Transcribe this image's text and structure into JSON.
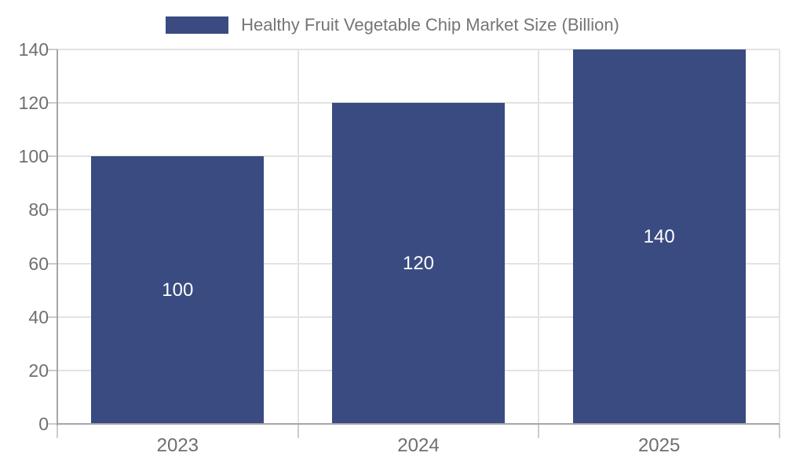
{
  "legend": {
    "label": "Healthy Fruit Vegetable Chip Market Size (Billion)"
  },
  "colors": {
    "bar": "#3a4b82",
    "grid": "#e3e3e3",
    "axis": "#a6a6a6",
    "tick": "#cccccc",
    "y_tick_label": "#6f6f6f",
    "x_tick_label": "#6f6f6f",
    "legend_text": "#757575",
    "data_label": "#ffffff",
    "background": "#ffffff"
  },
  "chart_data": {
    "type": "bar",
    "categories": [
      "2023",
      "2024",
      "2025"
    ],
    "series": [
      {
        "name": "Healthy Fruit Vegetable Chip Market Size (Billion)",
        "values": [
          100,
          120,
          140
        ]
      }
    ],
    "title": "",
    "xlabel": "",
    "ylabel": "",
    "ylim": [
      0,
      140
    ],
    "yticks": [
      0,
      20,
      40,
      60,
      80,
      100,
      120,
      140
    ],
    "grid": true,
    "legend_position": "top-center",
    "data_labels": true,
    "data_label_position": "inside-center"
  }
}
